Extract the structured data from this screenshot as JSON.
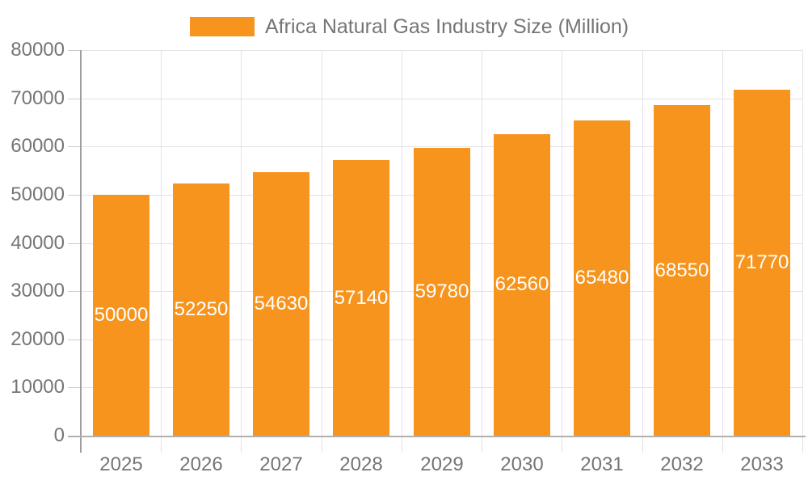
{
  "chart_data": {
    "type": "bar",
    "title": "Africa Natural Gas Industry Size (Million)",
    "series_name": "Africa Natural Gas Industry Size (Million)",
    "categories": [
      "2025",
      "2026",
      "2027",
      "2028",
      "2029",
      "2030",
      "2031",
      "2032",
      "2033"
    ],
    "values": [
      50000,
      52250,
      54630,
      57140,
      59780,
      62560,
      65480,
      68550,
      71770
    ],
    "xlabel": "",
    "ylabel": "",
    "ylim": [
      0,
      80000
    ],
    "ytick_step": 10000,
    "ytick_labels": [
      "0",
      "10000",
      "20000",
      "30000",
      "40000",
      "50000",
      "60000",
      "70000",
      "80000"
    ],
    "grid": true,
    "legend_position": "top",
    "bar_labels_visible": true,
    "bar_label_placement": "center"
  },
  "colors": {
    "bar": "#f7941e",
    "axis_text": "#757575",
    "legend_text": "#757575",
    "bar_label_text": "#ffffff",
    "gridline": "#e3e3e3",
    "axis_line_y": "#9e9e9e",
    "axis_line_x": "#b0b0b0",
    "tick": "#cccccc"
  }
}
